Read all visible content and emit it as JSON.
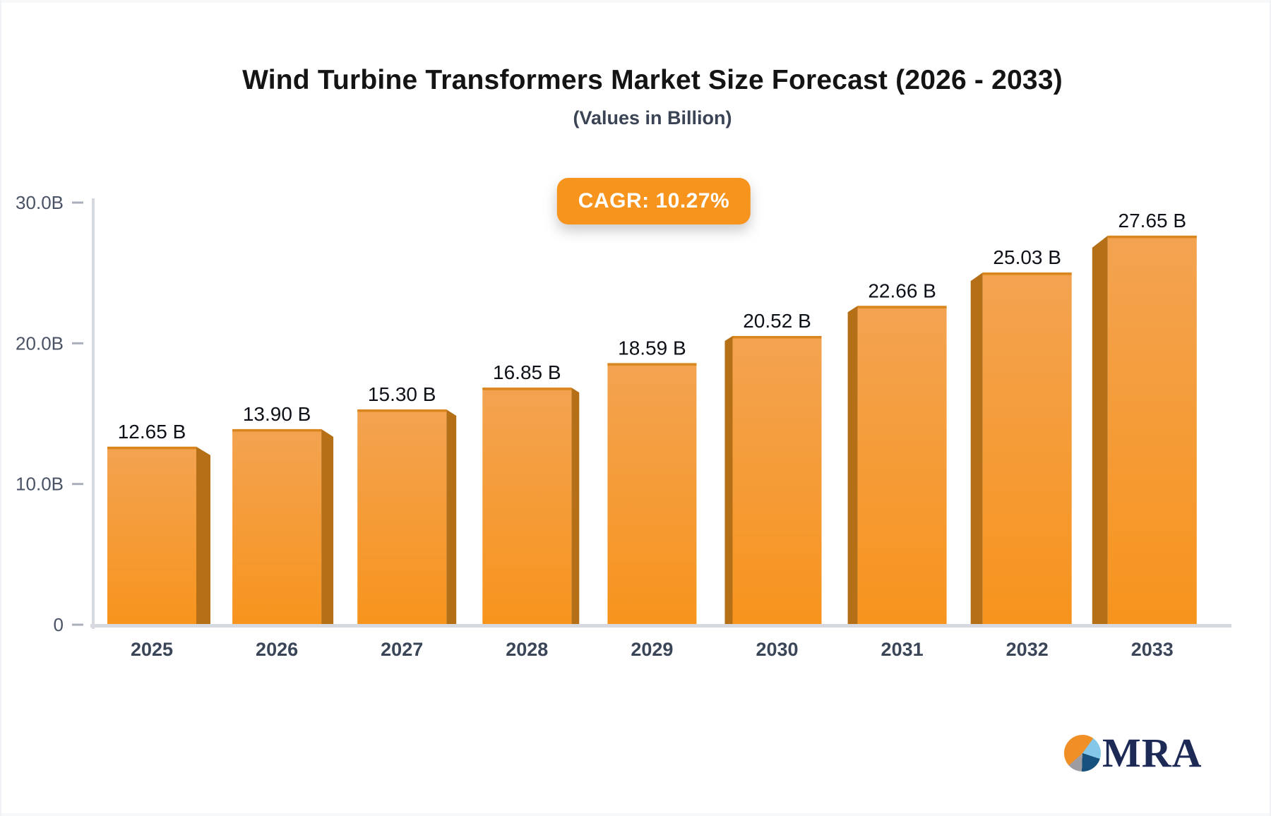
{
  "header": {
    "title": "Wind Turbine Transformers Market Size Forecast (2026 - 2033)",
    "subtitle": "(Values in Billion)"
  },
  "badge": {
    "label": "CAGR: 10.27%"
  },
  "chart_data": {
    "type": "bar",
    "title": "Wind Turbine Transformers Market Size Forecast (2026 - 2033)",
    "subtitle": "(Values in Billion)",
    "cagr_percent": 10.27,
    "categories": [
      "2025",
      "2026",
      "2027",
      "2028",
      "2029",
      "2030",
      "2031",
      "2032",
      "2033"
    ],
    "values": [
      12.65,
      13.9,
      15.3,
      16.85,
      18.59,
      20.52,
      22.66,
      25.03,
      27.65
    ],
    "value_labels": [
      "12.65 B",
      "13.90 B",
      "15.30 B",
      "16.85 B",
      "18.59 B",
      "20.52 B",
      "22.66 B",
      "25.03 B",
      "27.65 B"
    ],
    "unit": "Billion",
    "xlabel": "",
    "ylabel": "",
    "ylim": [
      0,
      30
    ],
    "yticks": [
      {
        "value": 30,
        "label": "30.0B"
      },
      {
        "value": 20,
        "label": "20.0B"
      },
      {
        "value": 10,
        "label": "10.0B"
      },
      {
        "value": 0,
        "label": "0"
      }
    ],
    "grid": false,
    "legend": "none",
    "bar_style": "3d-perspective-center"
  },
  "logo": {
    "text": "MRA"
  },
  "colors": {
    "accent": "#f7941e",
    "bar_top": "#f3a351",
    "bar_bottom": "#f7941d",
    "bar_side": "#b56f16",
    "bar_edge": "#d9861f",
    "axis": "#d6dae0",
    "tick": "#a9afbb",
    "value_label": "#0e1218",
    "xlabel": "#3a4657",
    "ylabel": "#4a5366",
    "text_dark": "#141414",
    "text_slate": "#3a4454",
    "logo_navy": "#1d2a56",
    "pie_orange": "#ef8f26",
    "pie_blue": "#85c7e9",
    "pie_navy": "#17527e",
    "pie_gray": "#9d9da1"
  }
}
